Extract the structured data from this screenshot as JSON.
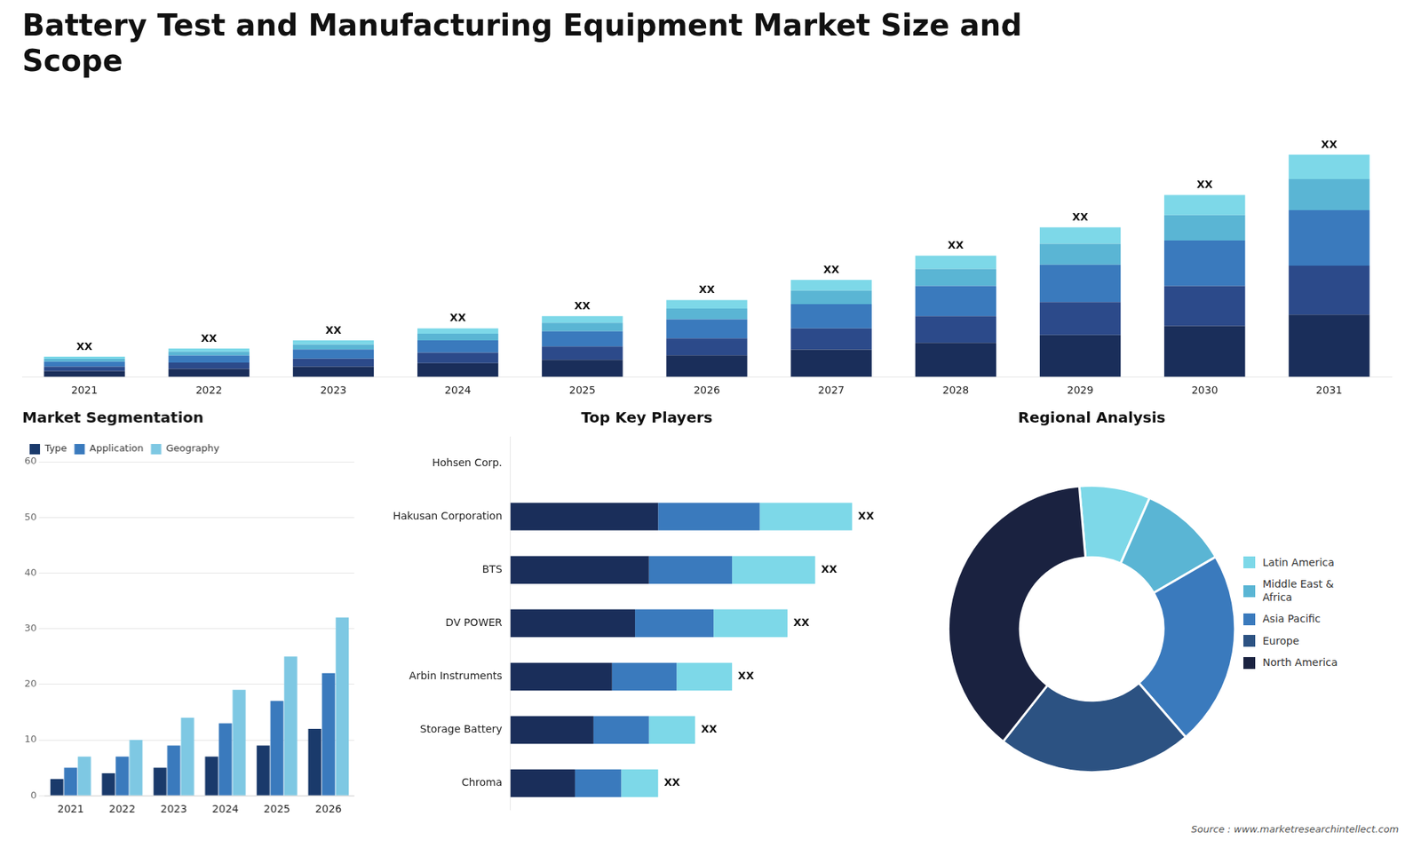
{
  "chart_data": [
    {
      "type": "bar",
      "title": "Battery Test and Manufacturing Equipment Market Size and\nScope",
      "stacked": true,
      "categories": [
        "2021",
        "2022",
        "2023",
        "2024",
        "2025",
        "2026",
        "2027",
        "2028",
        "2029",
        "2030",
        "2031"
      ],
      "series": [
        {
          "name": "North America",
          "color": "#1a2e5a",
          "values": [
            1.4,
            1.96,
            2.52,
            3.36,
            4.2,
            5.32,
            6.72,
            8.4,
            10.36,
            12.6,
            15.4
          ]
        },
        {
          "name": "Europe",
          "color": "#2c4a8a",
          "values": [
            1.1,
            1.54,
            1.98,
            2.64,
            3.3,
            4.18,
            5.28,
            6.6,
            8.14,
            9.9,
            12.1
          ]
        },
        {
          "name": "Asia Pacific",
          "color": "#3a7abd",
          "values": [
            1.25,
            1.75,
            2.25,
            3,
            3.75,
            4.75,
            6,
            7.5,
            9.25,
            11.25,
            13.75
          ]
        },
        {
          "name": "Middle East & Africa",
          "color": "#5ab5d4",
          "values": [
            0.7,
            0.98,
            1.26,
            1.68,
            2.1,
            2.66,
            3.36,
            4.2,
            5.18,
            6.3,
            7.7
          ]
        },
        {
          "name": "Latin America",
          "color": "#7dd8e8",
          "values": [
            0.55,
            0.77,
            0.99,
            1.32,
            1.65,
            2.09,
            2.64,
            3.3,
            4.07,
            4.95,
            6.05
          ]
        }
      ],
      "ylim": [
        0,
        68.75
      ],
      "tick_labels": "x",
      "annotations": [
        "XX",
        "XX",
        "XX",
        "XX",
        "XX",
        "XX",
        "XX",
        "XX",
        "XX",
        "XX",
        "XX"
      ]
    },
    {
      "type": "bar",
      "title": "Market Segmentation",
      "categories": [
        "2021",
        "2022",
        "2023",
        "2024",
        "2025",
        "2026"
      ],
      "series": [
        {
          "name": "Type",
          "color": "#1a3a6b",
          "values": [
            3,
            4,
            5,
            7,
            9,
            12
          ]
        },
        {
          "name": "Application",
          "color": "#3a7abd",
          "values": [
            5,
            7,
            9,
            13,
            17,
            22
          ]
        },
        {
          "name": "Geography",
          "color": "#7ec8e3",
          "values": [
            7,
            10,
            14,
            19,
            25,
            32
          ]
        }
      ],
      "ylim": [
        0,
        60
      ],
      "yticks": [
        0,
        10,
        20,
        30,
        40,
        50,
        60
      ],
      "grid": true,
      "legend": "upper left"
    },
    {
      "type": "bar",
      "title": "Top Key Players",
      "orientation": "horizontal",
      "stacked": true,
      "categories": [
        "Hohsen Corp.",
        "Hakusan Corporation",
        "BTS",
        "DV POWER",
        "Arbin Instruments",
        "Storage Battery",
        "Chroma"
      ],
      "series": [
        {
          "color": "#1a2e5a",
          "values": [
            0,
            32,
            30,
            27,
            22,
            18,
            14
          ]
        },
        {
          "color": "#3a7abd",
          "values": [
            0,
            22,
            18,
            17,
            14,
            12,
            10
          ]
        },
        {
          "color": "#7dd8e8",
          "values": [
            0,
            20,
            18,
            16,
            12,
            10,
            8
          ]
        }
      ],
      "xlim": [
        0,
        85
      ],
      "tick_labels": "y",
      "annotations": [
        null,
        "XX",
        "XX",
        "XX",
        "XX",
        "XX",
        "XX"
      ]
    },
    {
      "type": "donut",
      "title": "Regional Analysis",
      "categories": [
        "Latin America",
        "Middle East &\nAfrica",
        "Asia Pacific",
        "Europe",
        "North America"
      ],
      "values": [
        8,
        10,
        22,
        22,
        38
      ],
      "colors": [
        "#7dd8e8",
        "#5ab5d4",
        "#3a7abd",
        "#2c5282",
        "#1a2240"
      ],
      "legend": "right",
      "annotations": [
        "Source : www.marketresearchintellect.com"
      ]
    }
  ]
}
